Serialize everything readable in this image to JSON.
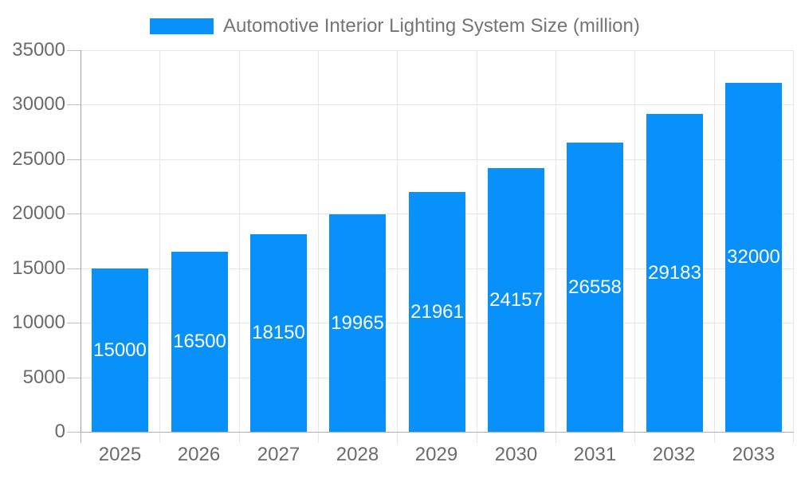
{
  "chart_data": {
    "type": "bar",
    "title": "Automotive Interior Lighting System Size (million)",
    "legend_position": "top",
    "categories": [
      "2025",
      "2026",
      "2027",
      "2028",
      "2029",
      "2030",
      "2031",
      "2032",
      "2033"
    ],
    "values": [
      15000,
      16500,
      18150,
      19965,
      21961,
      24157,
      26558,
      29183,
      32000
    ],
    "yticks": [
      "0",
      "5000",
      "10000",
      "15000",
      "20000",
      "25000",
      "30000",
      "35000"
    ],
    "ylim": [
      0,
      35000
    ],
    "xlabel": "",
    "ylabel": "",
    "grid": true,
    "value_labels_inside_bars": true,
    "colors": {
      "bar": "#0991fb",
      "value_label": "#ffffff",
      "gridline": "#e6e6e6",
      "axis_line": "#9e9e9e",
      "baseline": "#b0b0b0",
      "tick": "#c0c0c0",
      "axis_label": "#6b6b6b",
      "legend_text": "#757575",
      "background": "#ffffff"
    }
  }
}
